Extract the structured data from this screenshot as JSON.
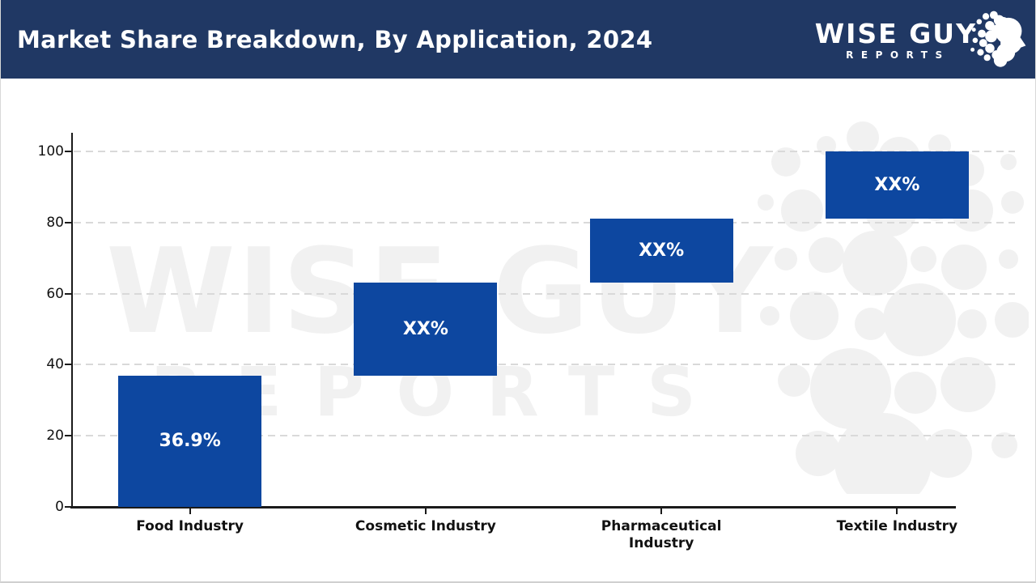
{
  "header": {
    "title": "Market Share Breakdown, By Application, 2024",
    "logo": {
      "line1": "WISE GUY",
      "line2": "REPORTS"
    }
  },
  "watermark": {
    "line1": "WISE GUY",
    "line2": "REPORTS"
  },
  "chart_data": {
    "type": "bar",
    "variant": "floating-waterfall",
    "title": "Market Share Breakdown, By Application, 2024",
    "categories": [
      "Food Industry",
      "Cosmetic Industry",
      "Pharmaceutical Industry",
      "Textile Industry"
    ],
    "segments": [
      {
        "category": "Food Industry",
        "start": 0,
        "end": 36.9,
        "label": "36.9%"
      },
      {
        "category": "Cosmetic Industry",
        "start": 36.9,
        "end": 63,
        "label": "XX%"
      },
      {
        "category": "Pharmaceutical Industry",
        "start": 63,
        "end": 81,
        "label": "XX%"
      },
      {
        "category": "Textile Industry",
        "start": 81,
        "end": 100,
        "label": "XX%"
      }
    ],
    "xlabel": "",
    "ylabel": "",
    "yticks": [
      0,
      20,
      40,
      60,
      80,
      100
    ],
    "ylim": [
      0,
      105
    ],
    "grid": "horizontal-dashed",
    "legend": "none",
    "colors": {
      "bar": "#0d47a0",
      "bar_label": "#ffffff",
      "axis": "#1a1a1a",
      "grid": "#d9d9d9",
      "header_bg": "#203864",
      "watermark": "#f1f1f1"
    }
  }
}
